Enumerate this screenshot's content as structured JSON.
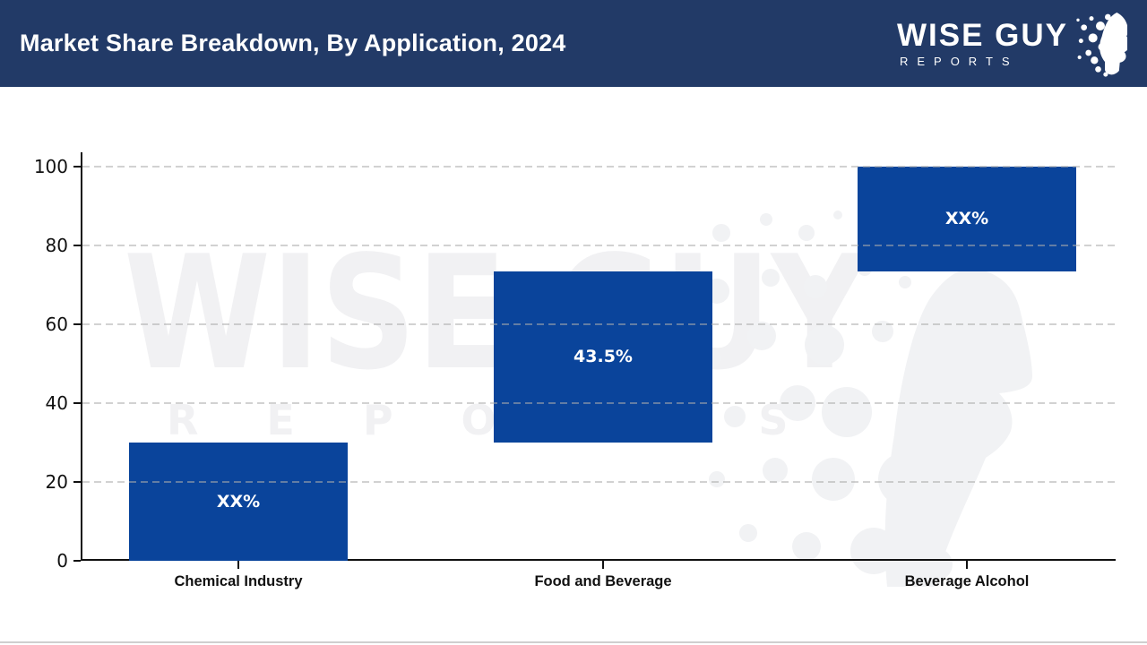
{
  "header": {
    "title": "Market Share Breakdown, By Application, 2024",
    "logo": {
      "line1": "WISE GUY",
      "line2": "REPORTS"
    }
  },
  "watermark": {
    "line1": "WISE GUY",
    "line2": "REPORTS"
  },
  "colors": {
    "header_bg": "#223a67",
    "bar": "#0a449b",
    "bar_label_text": "#ffffff",
    "axis": "#111111",
    "gridline": "#dcdcdc",
    "watermark": "#f1f1f3"
  },
  "chart_data": {
    "type": "bar",
    "subtype": "waterfall-breakdown",
    "title": "Market Share Breakdown, By Application, 2024",
    "categories": [
      "Chemical Industry",
      "Food and Beverage",
      "Beverage Alcohol"
    ],
    "bars": [
      {
        "category": "Chemical Industry",
        "base": 0,
        "top": 30,
        "value": 30,
        "label": "XX%"
      },
      {
        "category": "Food and Beverage",
        "base": 30,
        "top": 73.5,
        "value": 43.5,
        "label": "43.5%"
      },
      {
        "category": "Beverage Alcohol",
        "base": 73.5,
        "top": 100,
        "value": 26.5,
        "label": "XX%"
      }
    ],
    "ylim": [
      0,
      100
    ],
    "y_ticks": [
      0,
      20,
      40,
      60,
      80,
      100
    ],
    "xlabel": "",
    "ylabel": "",
    "grid": "dashed horizontal",
    "legend": "none"
  }
}
